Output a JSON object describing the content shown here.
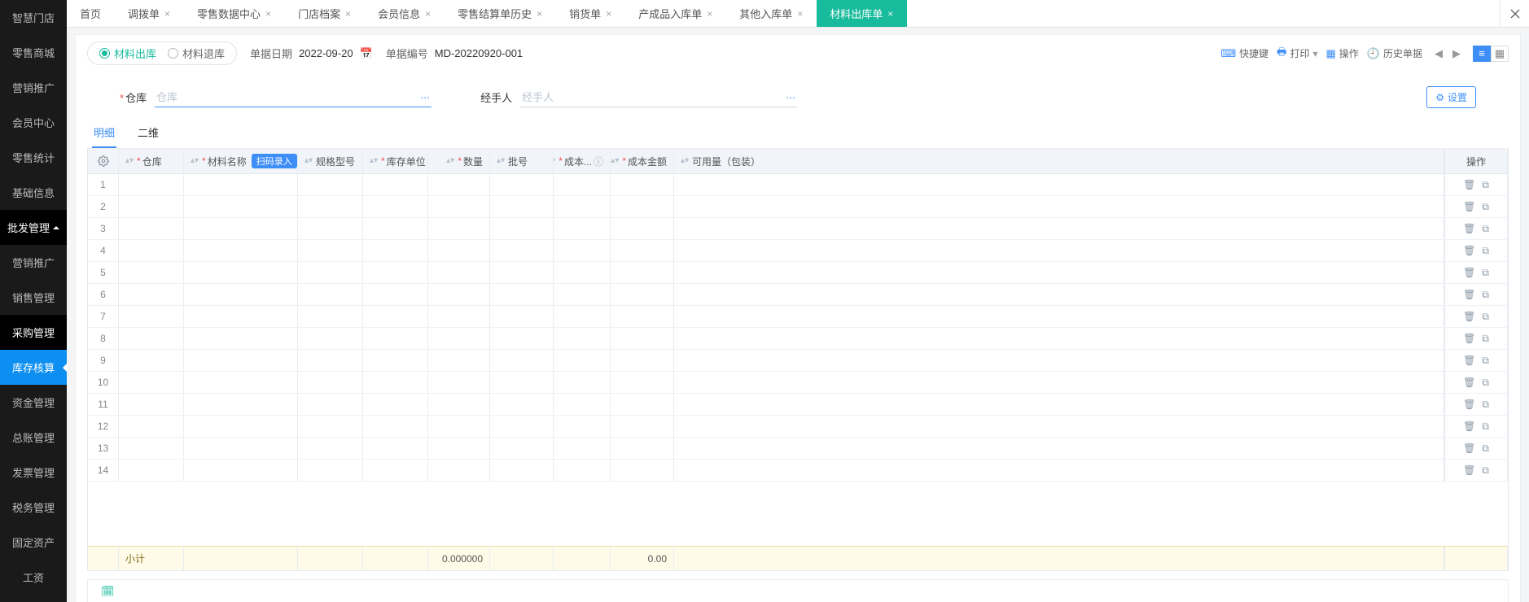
{
  "sidebar": {
    "items": [
      {
        "label": "智慧门店",
        "kind": "plain"
      },
      {
        "label": "零售商城",
        "kind": "plain"
      },
      {
        "label": "营销推广",
        "kind": "plain"
      },
      {
        "label": "会员中心",
        "kind": "plain"
      },
      {
        "label": "零售统计",
        "kind": "plain"
      },
      {
        "label": "基础信息",
        "kind": "plain"
      },
      {
        "label": "批发管理",
        "kind": "section"
      },
      {
        "label": "营销推广",
        "kind": "plain"
      },
      {
        "label": "销售管理",
        "kind": "plain"
      },
      {
        "label": "采购管理",
        "kind": "section-plain"
      },
      {
        "label": "库存核算",
        "kind": "active"
      },
      {
        "label": "资金管理",
        "kind": "plain"
      },
      {
        "label": "总账管理",
        "kind": "plain"
      },
      {
        "label": "发票管理",
        "kind": "plain"
      },
      {
        "label": "税务管理",
        "kind": "plain"
      },
      {
        "label": "固定资产",
        "kind": "plain"
      },
      {
        "label": "工资",
        "kind": "plain"
      }
    ]
  },
  "tabs": [
    {
      "label": "首页",
      "closable": false
    },
    {
      "label": "调拨单",
      "closable": true
    },
    {
      "label": "零售数据中心",
      "closable": true
    },
    {
      "label": "门店档案",
      "closable": true
    },
    {
      "label": "会员信息",
      "closable": true
    },
    {
      "label": "零售结算单历史",
      "closable": true
    },
    {
      "label": "销货单",
      "closable": true
    },
    {
      "label": "产成品入库单",
      "closable": true
    },
    {
      "label": "其他入库单",
      "closable": true
    },
    {
      "label": "材料出库单",
      "closable": true,
      "active": true
    }
  ],
  "radio": {
    "out_label": "材料出库",
    "return_label": "材料退库",
    "checked": "out"
  },
  "header_fields": {
    "date_label": "单据日期",
    "date_value": "2022-09-20",
    "billno_label": "单据编号",
    "billno_value": "MD-20220920-001"
  },
  "tool_actions": {
    "shortcut": "快捷键",
    "print": "打印",
    "operate": "操作",
    "history": "历史单据"
  },
  "form": {
    "warehouse_label": "仓库",
    "warehouse_placeholder": "仓库",
    "handler_label": "经手人",
    "handler_placeholder": "经手人",
    "settings_label": "设置"
  },
  "subtabs": {
    "detail": "明细",
    "two_dim": "二维"
  },
  "table": {
    "columns": {
      "warehouse": "仓库",
      "material": "材料名称",
      "scan_badge": "扫码录入",
      "spec": "规格型号",
      "unit": "库存单位",
      "qty": "数量",
      "lot": "批号",
      "cost_price": "成本...",
      "cost_amount": "成本金额",
      "available": "可用量（包装）",
      "ops": "操作"
    },
    "row_count": 14,
    "footer": {
      "label": "小计",
      "qty": "0.000000",
      "amount": "0.00"
    }
  },
  "colors": {
    "accent_green": "#18bb9c",
    "accent_blue": "#3d8ef7",
    "sidebar_active": "#0d8ff2",
    "red": "#f05050",
    "footer_bg": "#fffbe8"
  }
}
